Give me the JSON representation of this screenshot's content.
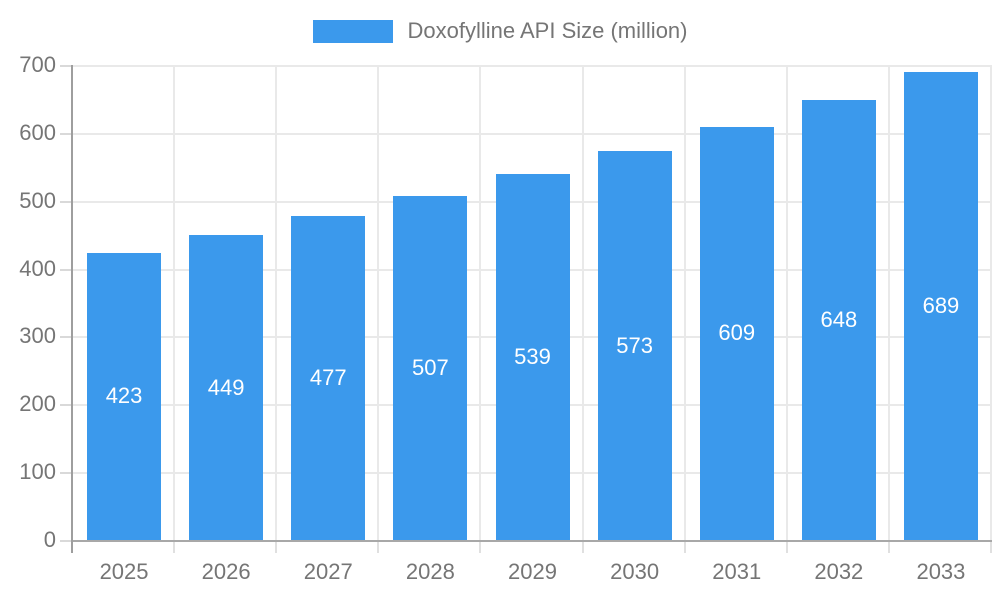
{
  "legend": {
    "label": "Doxofylline API Size (million)"
  },
  "chart_data": {
    "type": "bar",
    "title": "Doxofylline API Size (million)",
    "categories": [
      "2025",
      "2026",
      "2027",
      "2028",
      "2029",
      "2030",
      "2031",
      "2032",
      "2033"
    ],
    "values": [
      423,
      449,
      477,
      507,
      539,
      573,
      609,
      648,
      689
    ],
    "series": [
      {
        "name": "Doxofylline API Size (million)",
        "values": [
          423,
          449,
          477,
          507,
          539,
          573,
          609,
          648,
          689
        ]
      }
    ],
    "xlabel": "",
    "ylabel": "",
    "ylim": [
      0,
      700
    ],
    "yticks": [
      0,
      100,
      200,
      300,
      400,
      500,
      600,
      700
    ],
    "grid": true,
    "legend_position": "top",
    "bar_labels_shown": true
  },
  "colors": {
    "bar": "#3B99EC",
    "bar_label": "#ffffff",
    "axis": "#9e9e9e",
    "gridline": "#e9e9e9",
    "tick": "#dcdcdc",
    "text": "#757575"
  }
}
